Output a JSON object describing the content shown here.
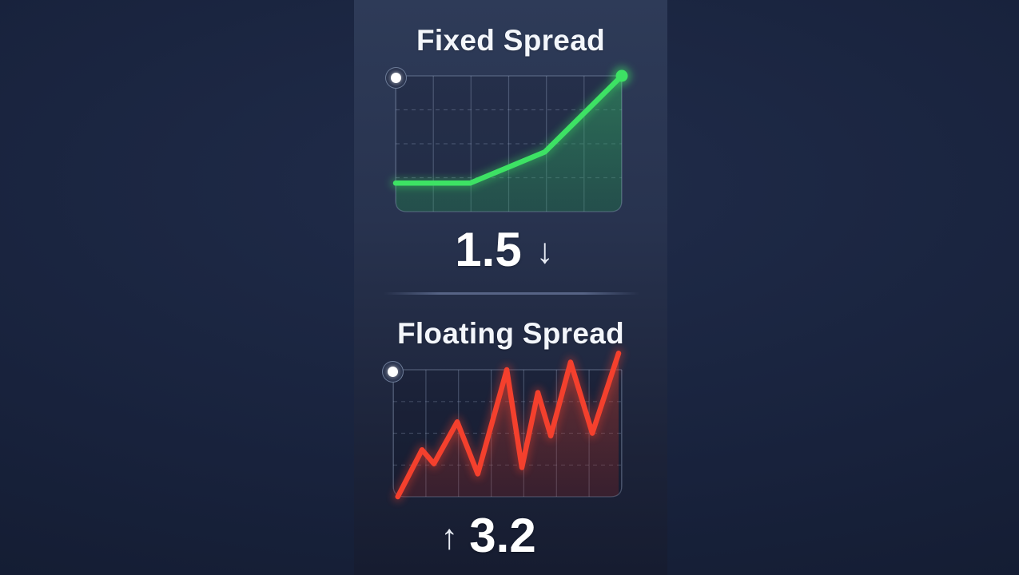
{
  "cards": [
    {
      "title": "Fixed Spread",
      "value": "1.5",
      "arrow": "↓"
    },
    {
      "title": "Floating Spread",
      "value": "3.2",
      "arrow": "↑"
    }
  ],
  "colors": {
    "panel_top": "#2e3b58",
    "panel_bottom": "#161c30",
    "background": "#18223c",
    "title_text": "#f3f6fb",
    "value_text": "#ffffff",
    "green_line": "#3de264",
    "red_line": "#f4402d",
    "grid_line": "rgba(168,186,214,0.30)",
    "marker_dot": "#ffffff"
  },
  "chart_data": [
    {
      "type": "line",
      "title": "Fixed Spread",
      "x": [
        0,
        0.33,
        0.66,
        1.0
      ],
      "values": [
        1.05,
        1.05,
        2.2,
        5.0
      ],
      "ylim": [
        0,
        5
      ],
      "xlabel": "",
      "ylabel": "",
      "grid": "on",
      "grid_cols": 6,
      "grid_rows": 4,
      "legend": "none",
      "line_color": "#3de264",
      "fill_top": "rgba(58,195,108,0.50)",
      "fill_bottom": "rgba(40,150,88,0.33)",
      "grid_color": "rgba(168,186,214,0.30)",
      "end_dot": true,
      "annotation": "1.5 ↓"
    },
    {
      "type": "line",
      "title": "Floating Spread",
      "x": [
        0.02,
        0.126,
        0.178,
        0.28,
        0.37,
        0.497,
        0.563,
        0.633,
        0.689,
        0.776,
        0.871,
        0.986
      ],
      "values": [
        0.0,
        1.85,
        1.3,
        2.95,
        0.9,
        5.0,
        1.15,
        4.1,
        2.4,
        5.3,
        2.5,
        5.65
      ],
      "ylim": [
        0,
        5
      ],
      "xlabel": "",
      "ylabel": "",
      "grid": "on",
      "grid_cols": 7,
      "grid_rows": 4,
      "legend": "none",
      "line_color": "#f4402d",
      "fill_top": "rgba(235,75,48,0.42)",
      "fill_bottom": "rgba(150,40,38,0.26)",
      "grid_color": "rgba(168,186,214,0.30)",
      "end_dot": false,
      "annotation": "↑ 3.2"
    }
  ]
}
